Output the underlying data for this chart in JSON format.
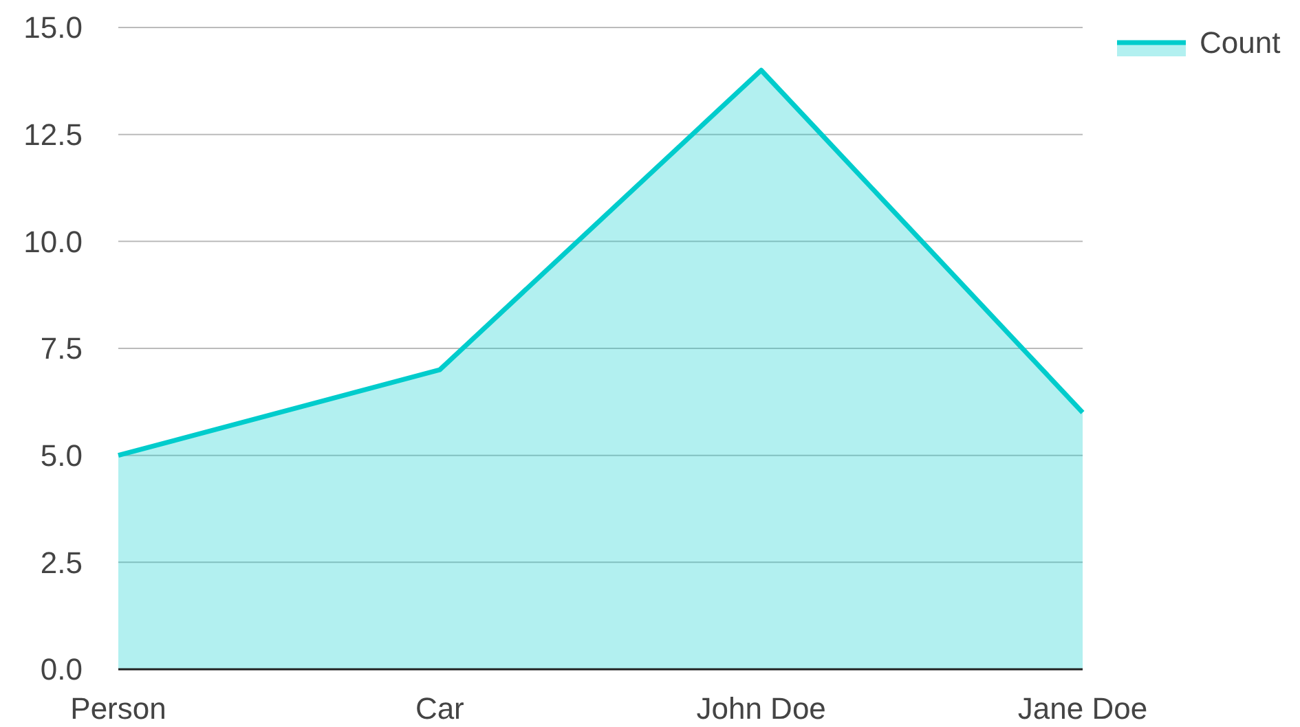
{
  "chart_data": {
    "type": "area",
    "categories": [
      "Person",
      "Car",
      "John Doe",
      "Jane Doe"
    ],
    "series": [
      {
        "name": "Count",
        "color": "#00cccc",
        "values": [
          5,
          7,
          14,
          6
        ]
      }
    ],
    "ylim": [
      0,
      15
    ],
    "yticks": [
      {
        "value": 0,
        "label": "0.0"
      },
      {
        "value": 2.5,
        "label": "2.5"
      },
      {
        "value": 5,
        "label": "5.0"
      },
      {
        "value": 7.5,
        "label": "7.5"
      },
      {
        "value": 10,
        "label": "10.0"
      },
      {
        "value": 12.5,
        "label": "12.5"
      },
      {
        "value": 15,
        "label": "15.0"
      }
    ],
    "grid": "y",
    "legend": "top right"
  }
}
